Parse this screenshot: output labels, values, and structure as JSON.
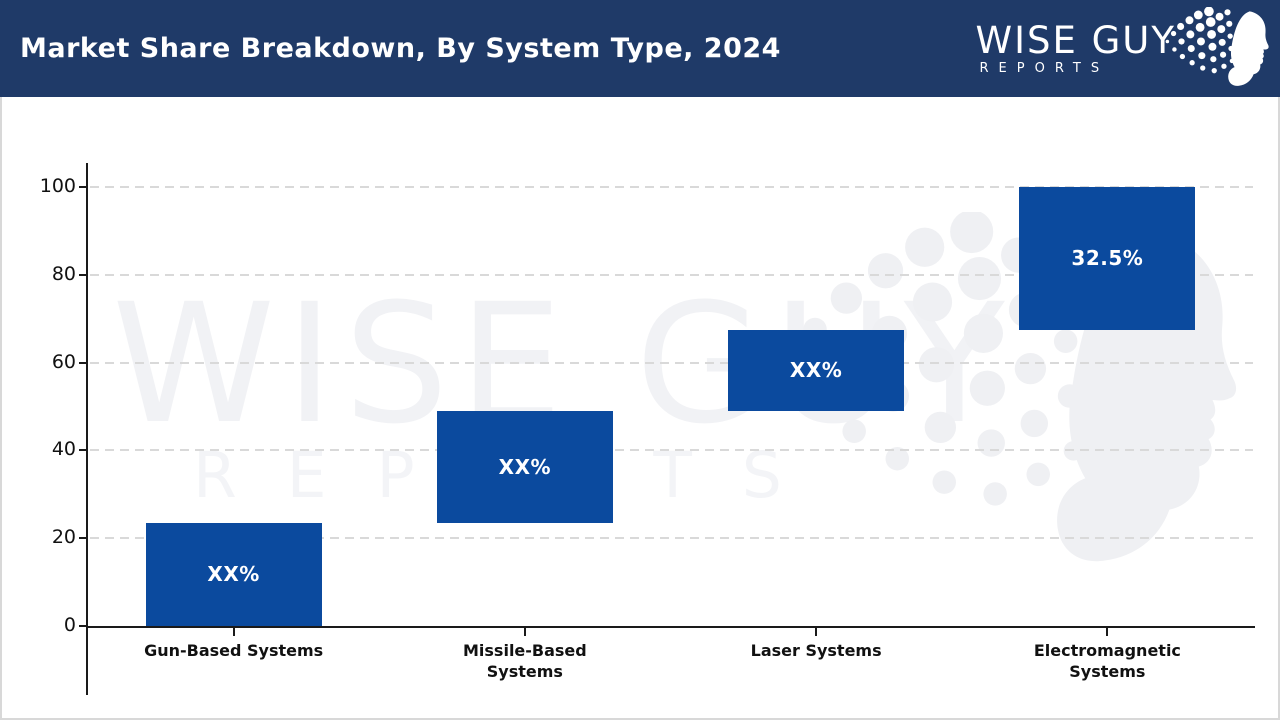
{
  "header": {
    "title": "Market Share Breakdown, By System Type, 2024",
    "logo": {
      "line1": "WISE GUY",
      "line2": "REPORTS"
    }
  },
  "watermark": {
    "line1": "WISE GUY",
    "line2": "REPORTS"
  },
  "colors": {
    "header_bg": "#1f3a68",
    "bar": "#0b4a9e",
    "grid": "#d9d9d9",
    "axis": "#1a1a1a",
    "watermark": "#f1f2f5"
  },
  "chart_data": {
    "type": "bar",
    "subtype": "waterfall",
    "title": "Market Share Breakdown, By System Type, 2024",
    "xlabel": "",
    "ylabel": "",
    "categories": [
      "Gun-Based Systems",
      "Missile-Based Systems",
      "Laser Systems",
      "Electromagnetic Systems"
    ],
    "tick_labels": [
      "Gun-Based Systems",
      "Missile-Based\nSystems",
      "Laser Systems",
      "Electromagnetic\nSystems"
    ],
    "series": [
      {
        "name": "Market Share",
        "starts": [
          0,
          23.5,
          49,
          67.5
        ],
        "ends": [
          23.5,
          49,
          67.5,
          100
        ],
        "labels": [
          "XX%",
          "XX%",
          "XX%",
          "32.5%"
        ]
      }
    ],
    "ylim": [
      0,
      105
    ],
    "yticks": [
      0,
      20,
      40,
      60,
      80,
      100
    ],
    "grid": "horizontal-dashed",
    "legend": "none"
  }
}
